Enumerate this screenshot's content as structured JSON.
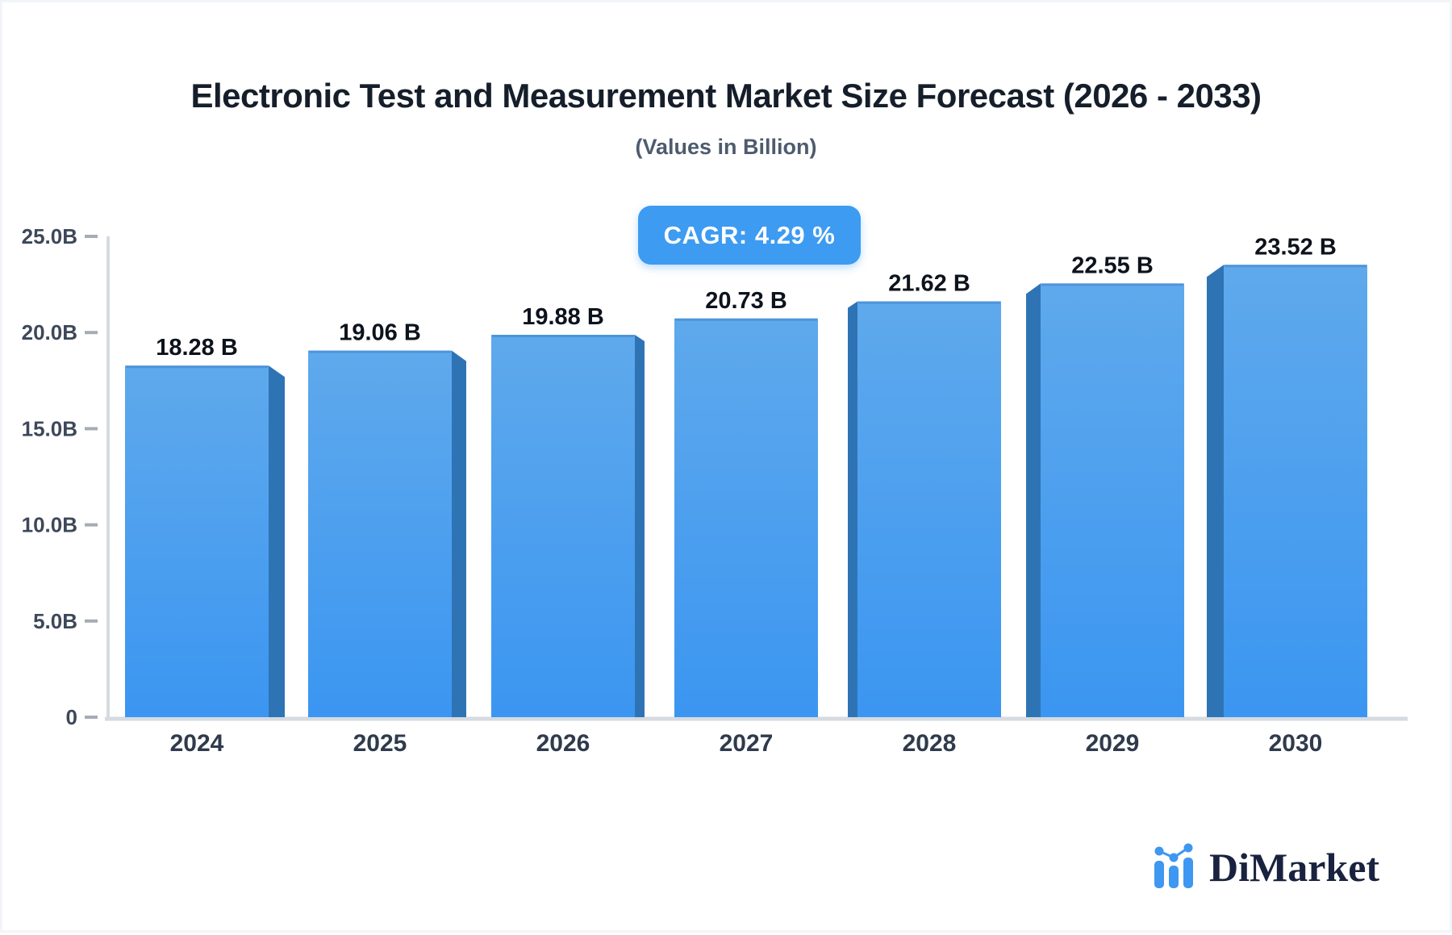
{
  "chart_data": {
    "type": "bar",
    "title": "Electronic Test and Measurement Market Size Forecast (2026 - 2033)",
    "subtitle": "(Values in Billion)",
    "cagr_badge": "CAGR: 4.29 %",
    "categories": [
      "2024",
      "2025",
      "2026",
      "2027",
      "2028",
      "2029",
      "2030"
    ],
    "values": [
      18.28,
      19.06,
      19.88,
      20.73,
      21.62,
      22.55,
      23.52
    ],
    "value_labels": [
      "18.28 B",
      "19.06 B",
      "19.88 B",
      "20.73 B",
      "21.62 B",
      "22.55 B",
      "23.52 B"
    ],
    "xlabel": "",
    "ylabel": "",
    "ylim": [
      0,
      25
    ],
    "yticks": [
      0,
      5,
      10,
      15,
      20,
      25
    ],
    "ytick_labels": [
      "0",
      "5.0B",
      "10.0B",
      "15.0B",
      "20.0B",
      "25.0B"
    ],
    "grid": false,
    "legend": "none",
    "bar_style": "3d-extruded",
    "colors": {
      "bar_top": "#5fa9ec",
      "bar_bottom": "#3b96f1",
      "bar_side": "#2e74b5",
      "bar_top_edge": "#4e94da",
      "axis_line": "#d6dae1",
      "tick_mark": "#a6acb6",
      "tick_label": "#3d4859",
      "year_label": "#2f3b4c",
      "value_label": "#0c131c",
      "badge_bg": "#3d9bf1",
      "badge_text": "#ffffff"
    }
  },
  "logo": {
    "text": "DiMarket",
    "icon": "mini-bar-chart-icon",
    "text_color": "#19233f",
    "icon_color": "#3e97f0"
  }
}
